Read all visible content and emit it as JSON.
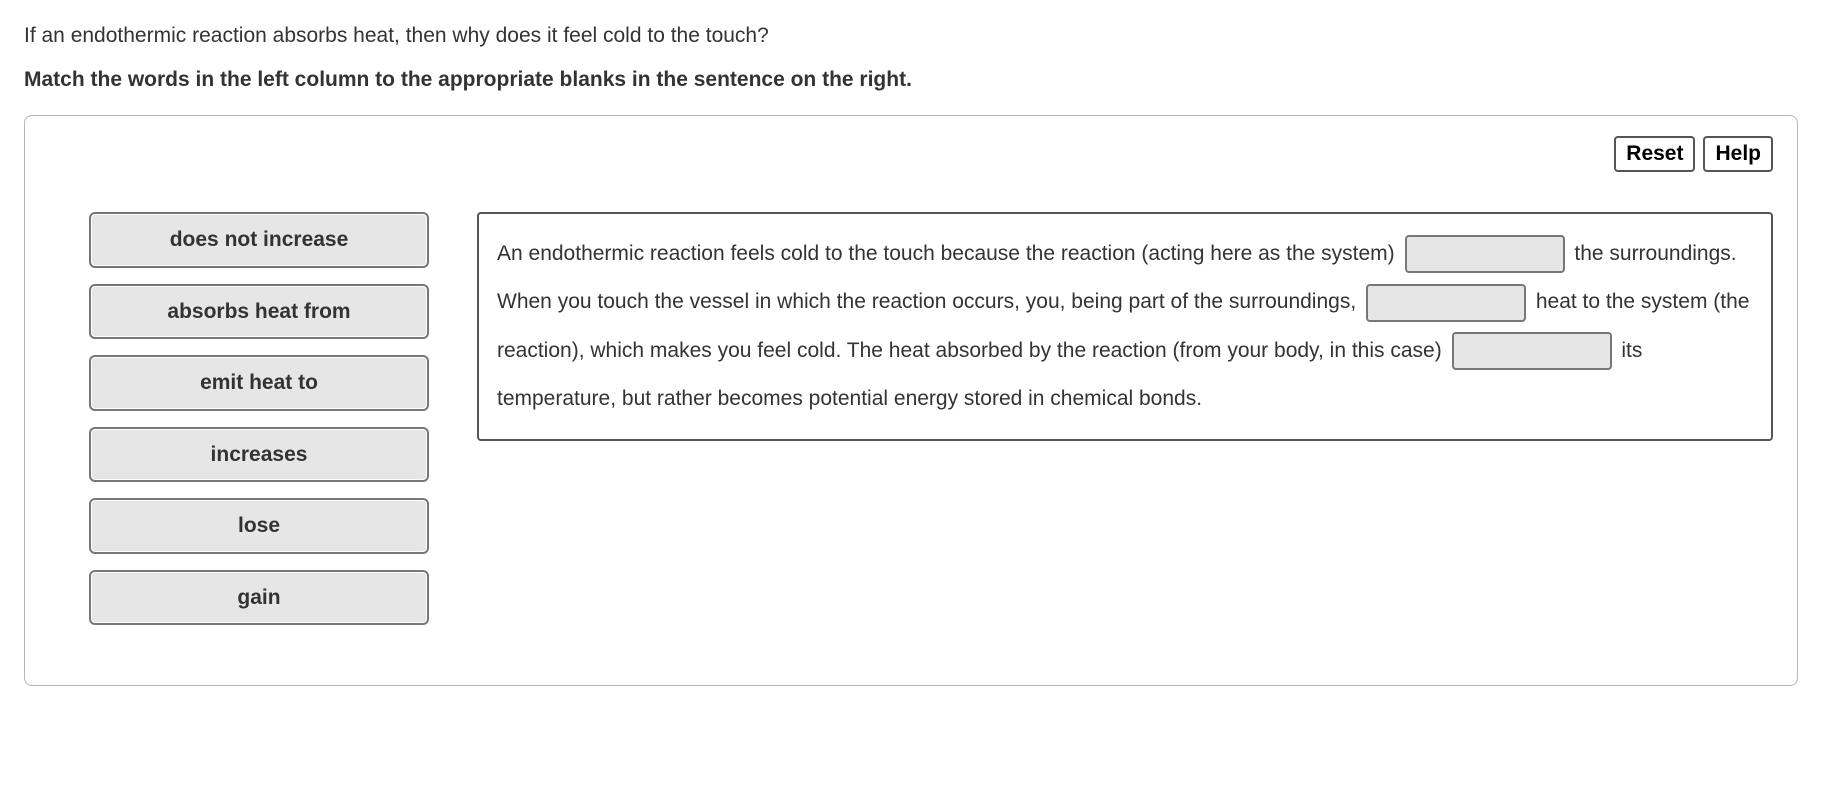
{
  "question": "If an endothermic reaction absorbs heat, then why does it feel cold to the touch?",
  "instruction": "Match the words in the left column to the appropriate blanks in the sentence on the right.",
  "buttons": {
    "reset": "Reset",
    "help": "Help"
  },
  "word_bank": [
    "does not increase",
    "absorbs heat from",
    "emit heat to",
    "increases",
    "lose",
    "gain"
  ],
  "sentence": {
    "part1": "An endothermic reaction feels cold to the touch because the reaction (acting here as the system) ",
    "part2": " the surroundings. When you touch the vessel in which the reaction occurs, you, being part of the surroundings, ",
    "part3": " heat to the system (the reaction), which makes you feel cold. The heat absorbed by the reaction (from your body, in this case) ",
    "part4": " its temperature, but rather becomes potential energy stored in chemical bonds."
  },
  "colors": {
    "tile_bg": "#e6e6e6",
    "tile_border": "#777777",
    "panel_border": "#b5b5b5",
    "text": "#333333"
  }
}
